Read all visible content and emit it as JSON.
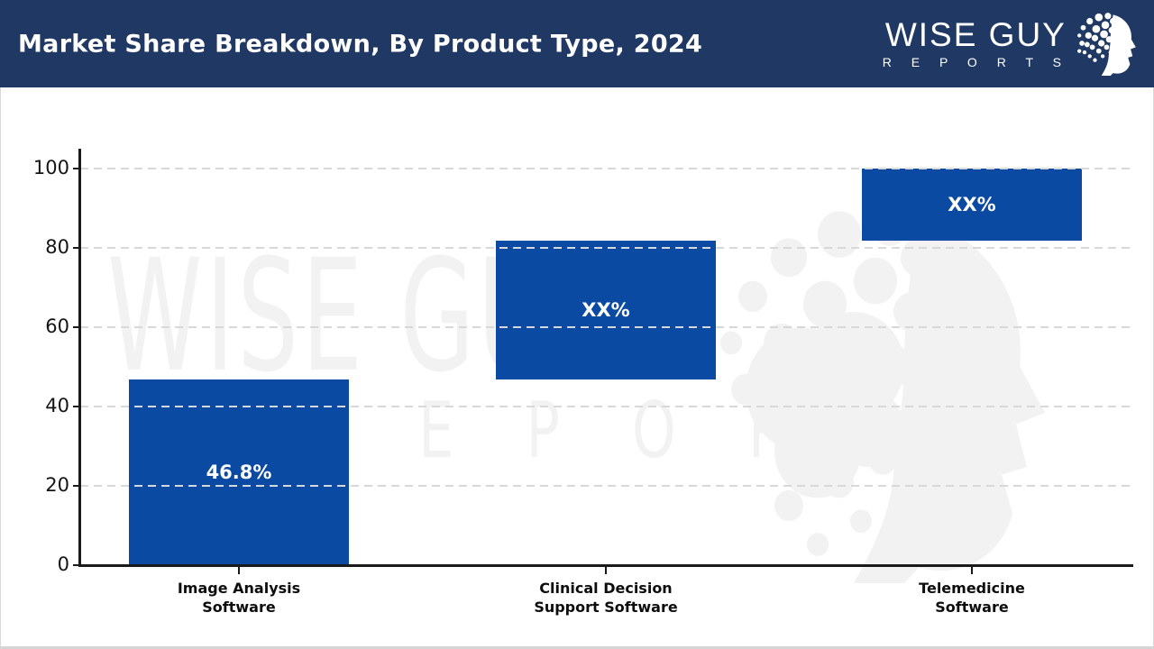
{
  "header": {
    "title": "Market Share Breakdown, By Product Type, 2024",
    "bg_color": "#1f3864",
    "brand": {
      "name": "WISE GUY",
      "sub": "R E P O R T S"
    }
  },
  "watermark": {
    "line1": "WISE GUY",
    "line2": "R E P O R T S"
  },
  "chart_data": {
    "type": "bar",
    "variant": "waterfall",
    "title": "Market Share Breakdown, By Product Type, 2024",
    "categories": [
      [
        "Image Analysis",
        "Software"
      ],
      [
        "Clinical Decision",
        "Support Software"
      ],
      [
        "Telemedicine",
        "Software"
      ]
    ],
    "bars": [
      {
        "label": "46.8%",
        "start": 0,
        "end": 46.8
      },
      {
        "label": "XX%",
        "start": 46.8,
        "end": 81.8
      },
      {
        "label": "XX%",
        "start": 81.8,
        "end": 100
      }
    ],
    "ylim": [
      0,
      100
    ],
    "yticks": [
      0,
      20,
      40,
      60,
      80,
      100
    ],
    "bar_color": "#0b4aa2",
    "bar_label_color": "#ffffff",
    "grid": {
      "style": "dashed",
      "direction": "horizontal",
      "color": "#d8d8d8"
    },
    "axis_color": "#1a1a1a",
    "legend": "none"
  }
}
